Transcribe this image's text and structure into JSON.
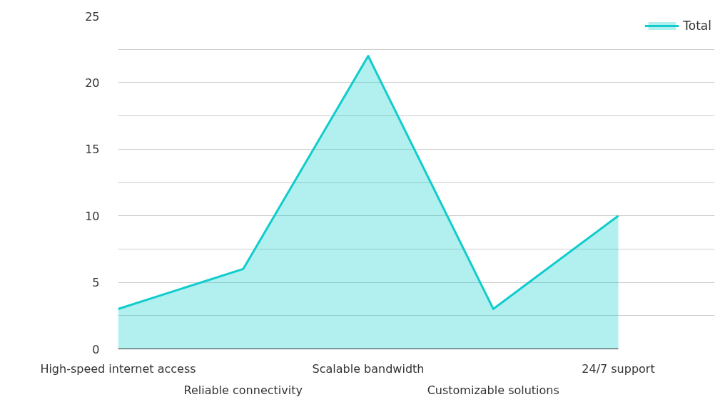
{
  "chart_data": {
    "type": "area",
    "categories": [
      "High-speed internet access",
      "Reliable connectivity",
      "Scalable bandwidth",
      "Customizable solutions",
      "24/7 support"
    ],
    "series": [
      {
        "name": "Total",
        "color": "#11cccc",
        "values": [
          3,
          6,
          22,
          3,
          10
        ]
      }
    ],
    "ylim": [
      0,
      25
    ],
    "yticks": [
      0,
      {
        "value": 2.5,
        "label": null
      },
      5,
      {
        "value": 7.5,
        "label": null
      },
      10,
      {
        "value": 12.5,
        "label": null
      },
      15,
      {
        "value": 17.5,
        "label": null
      },
      20,
      {
        "value": 22.5,
        "label": null
      },
      25
    ],
    "grid": "y",
    "legend": "top right"
  }
}
